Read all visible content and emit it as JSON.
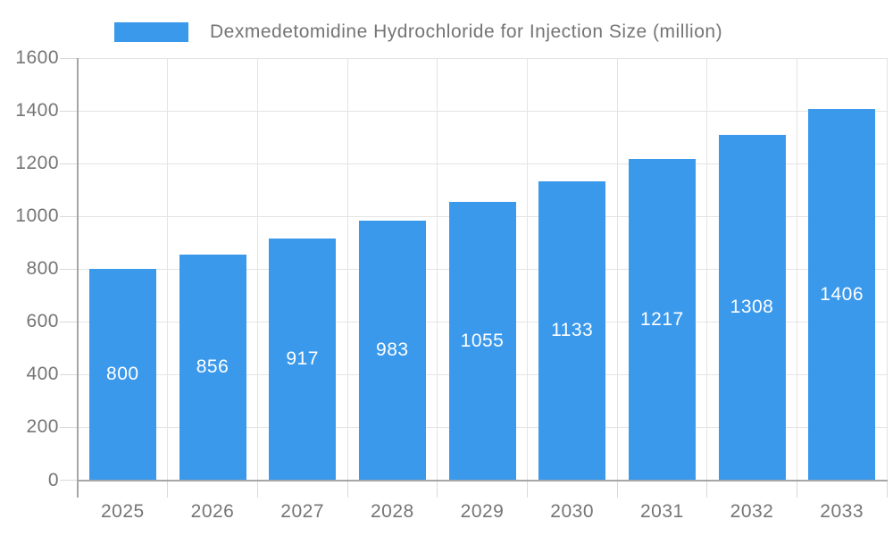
{
  "chart_data": {
    "type": "bar",
    "title": "Dexmedetomidine Hydrochloride for Injection Size (million)",
    "legend_position": "top",
    "categories": [
      "2025",
      "2026",
      "2027",
      "2028",
      "2029",
      "2030",
      "2031",
      "2032",
      "2033"
    ],
    "series": [
      {
        "name": "Dexmedetomidine Hydrochloride for Injection Size (million)",
        "values": [
          800,
          856,
          917,
          983,
          1055,
          1133,
          1217,
          1308,
          1406
        ]
      }
    ],
    "data_labels": [
      "800",
      "856",
      "917",
      "983",
      "1055",
      "1133",
      "1217",
      "1308",
      "1406"
    ],
    "xlabel": "",
    "ylabel": "",
    "ylim": [
      0,
      1600
    ],
    "ytick_step": 200,
    "yticks": [
      0,
      200,
      400,
      600,
      800,
      1000,
      1200,
      1400,
      1600
    ],
    "grid": true,
    "colors": {
      "bar": "#3B99EC",
      "bar_label": "#FFFFFF",
      "axis_text": "#757575",
      "axis_line": "#A6A6A6",
      "gridline": "#E4E4E4",
      "tick": "#D9D9D9",
      "background": "#FFFFFF"
    }
  }
}
